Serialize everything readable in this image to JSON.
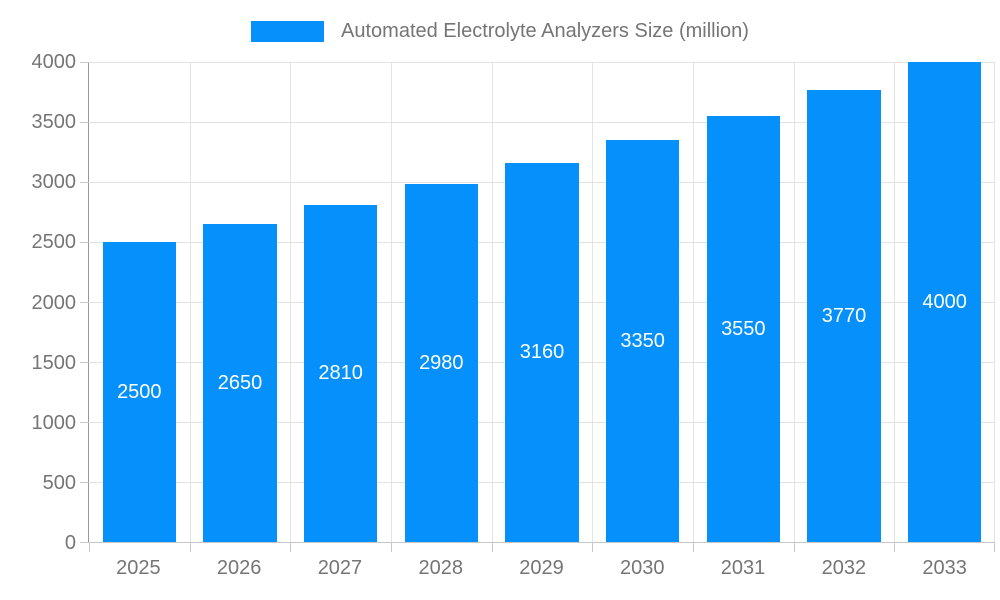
{
  "legend": {
    "label": "Automated Electrolyte Analyzers Size (million)",
    "swatch_color": "#0590fb"
  },
  "chart_data": {
    "type": "bar",
    "title": "Automated Electrolyte Analyzers Size (million)",
    "categories": [
      "2025",
      "2026",
      "2027",
      "2028",
      "2029",
      "2030",
      "2031",
      "2032",
      "2033"
    ],
    "values": [
      2500,
      2650,
      2810,
      2980,
      3160,
      3350,
      3550,
      3770,
      4000
    ],
    "bar_labels": [
      "2500",
      "2650",
      "2810",
      "2980",
      "3160",
      "3350",
      "3550",
      "3770",
      "4000"
    ],
    "xlabel": "",
    "ylabel": "",
    "ylim": [
      0,
      4000
    ],
    "yticks": [
      0,
      500,
      1000,
      1500,
      2000,
      2500,
      3000,
      3500,
      4000
    ],
    "grid": true,
    "legend_position": "top",
    "bar_color": "#0590fb",
    "bar_label_color": "#ffffff"
  },
  "colors": {
    "background": "#ffffff",
    "axis_text": "#757575",
    "grid_line": "#e3e3e3",
    "y_axis_line": "#989898",
    "x_axis_line": "#c6c6c6"
  }
}
